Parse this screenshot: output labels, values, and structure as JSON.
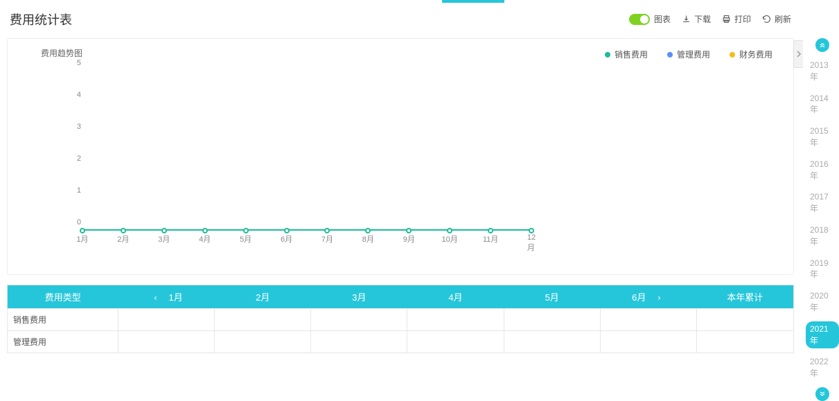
{
  "colors": {
    "accent": "#26c6da",
    "toggle_on": "#7ed321",
    "legend_sales": "#1abc9c",
    "legend_admin": "#5b8ff9",
    "legend_finance": "#f6bd16",
    "table_header": "#26c6da",
    "year_btn": "#26c6da",
    "grid": "#e0e0e0",
    "background": "#ffffff"
  },
  "header": {
    "title": "费用统计表"
  },
  "toolbar": {
    "chart_toggle_label": "图表",
    "download_label": "下载",
    "print_label": "打印",
    "refresh_label": "刷新"
  },
  "chart": {
    "title": "费用趋势图",
    "type": "line",
    "ylim": [
      0,
      5
    ],
    "y_ticks": [
      0,
      1,
      2,
      3,
      4,
      5
    ],
    "x_categories": [
      "1月",
      "2月",
      "3月",
      "4月",
      "5月",
      "6月",
      "7月",
      "8月",
      "9月",
      "10月",
      "11月",
      "12月"
    ],
    "series": [
      {
        "name": "销售费用",
        "color": "#1abc9c",
        "values": [
          0,
          0,
          0,
          0,
          0,
          0,
          0,
          0,
          0,
          0,
          0,
          0
        ],
        "line_width": 2,
        "marker": "circle"
      },
      {
        "name": "管理费用",
        "color": "#5b8ff9",
        "values": [
          0,
          0,
          0,
          0,
          0,
          0,
          0,
          0,
          0,
          0,
          0,
          0
        ],
        "line_width": 2,
        "marker": "circle"
      },
      {
        "name": "财务费用",
        "color": "#f6bd16",
        "values": [
          0,
          0,
          0,
          0,
          0,
          0,
          0,
          0,
          0,
          0,
          0,
          0
        ],
        "line_width": 2,
        "marker": "circle"
      }
    ],
    "legend_position": "top-right",
    "axis_fontsize": 11,
    "legend_fontsize": 12
  },
  "table": {
    "type_col_header": "费用类型",
    "month_headers": [
      "1月",
      "2月",
      "3月",
      "4月",
      "5月",
      "6月"
    ],
    "ytd_header": "本年累计",
    "rows": [
      {
        "label": "销售费用",
        "cells": [
          "",
          "",
          "",
          "",
          "",
          ""
        ],
        "ytd": ""
      },
      {
        "label": "管理费用",
        "cells": [
          "",
          "",
          "",
          "",
          "",
          ""
        ],
        "ytd": ""
      }
    ]
  },
  "years": {
    "items": [
      "2013年",
      "2014年",
      "2015年",
      "2016年",
      "2017年",
      "2018年",
      "2019年",
      "2020年",
      "2021年",
      "2022年"
    ],
    "active": "2021年"
  }
}
